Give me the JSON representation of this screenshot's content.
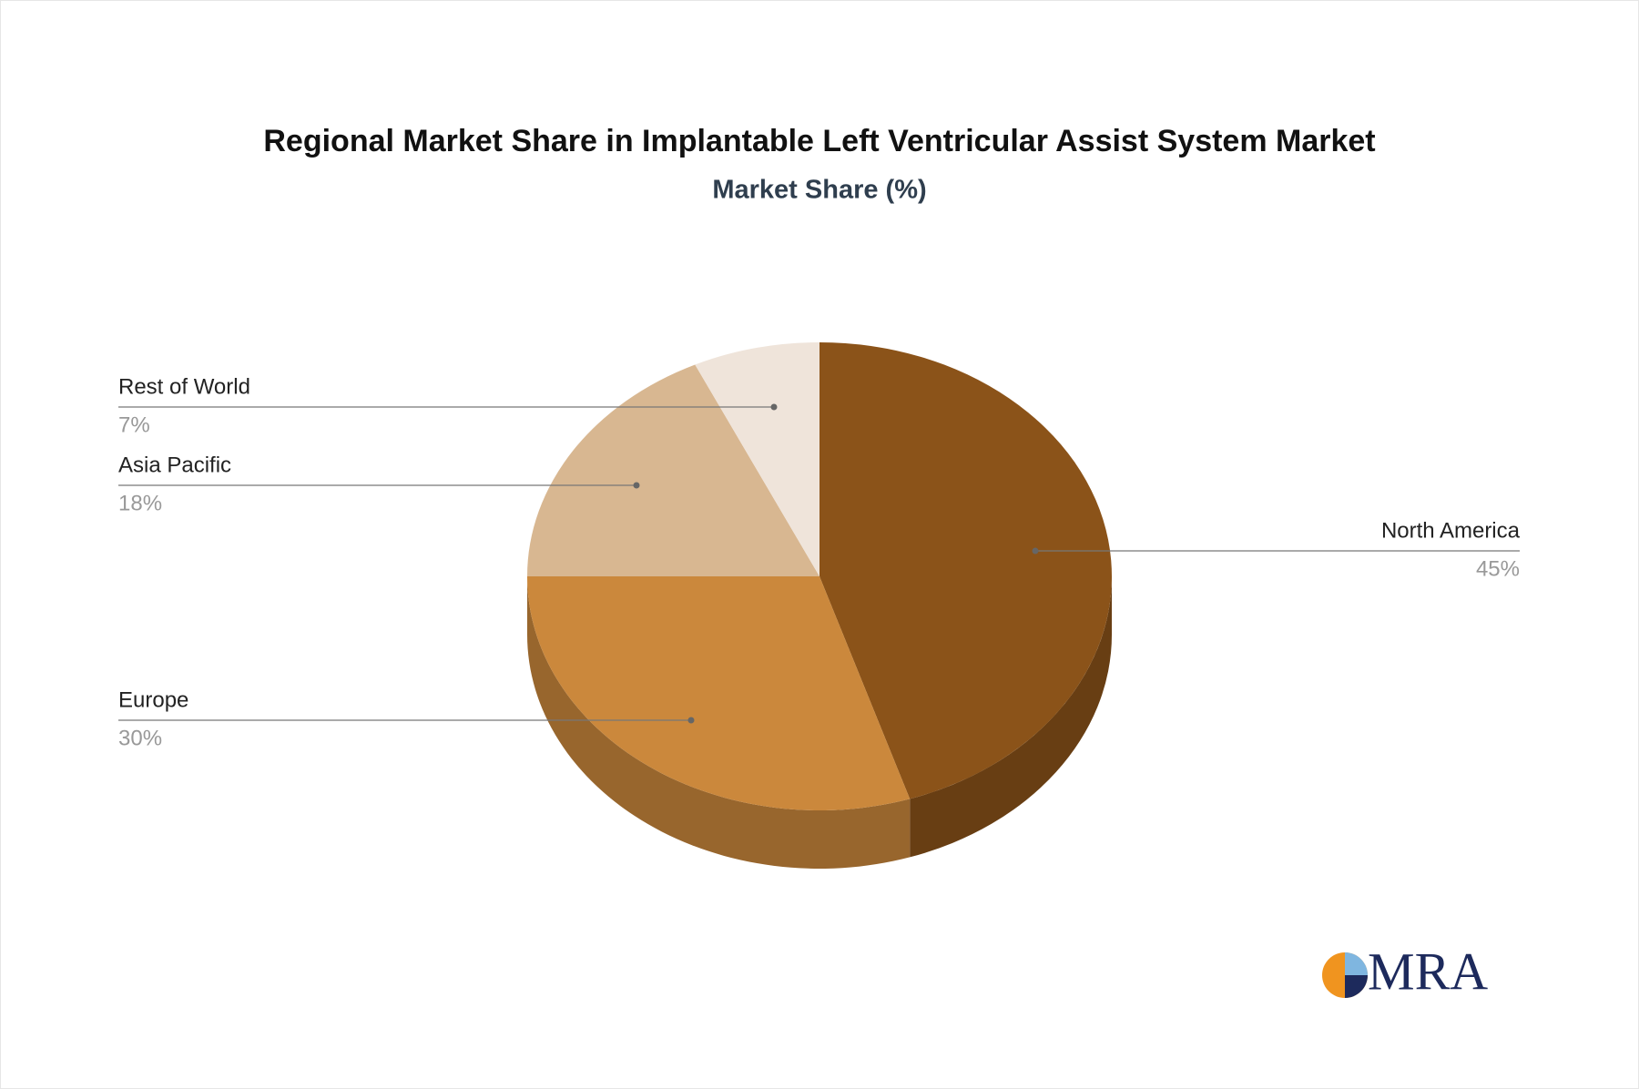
{
  "chart_data": {
    "type": "pie",
    "title": "Regional Market Share in Implantable Left Ventricular Assist System Market",
    "subtitle": "Market Share (%)",
    "categories": [
      "North America",
      "Europe",
      "Asia Pacific",
      "Rest of World"
    ],
    "values": [
      45,
      30,
      18,
      7
    ],
    "value_labels": [
      "45%",
      "30%",
      "18%",
      "7%"
    ],
    "colors": [
      "#8b5319",
      "#cb883c",
      "#d8b791",
      "#efe4da"
    ]
  },
  "logo": "MRA"
}
